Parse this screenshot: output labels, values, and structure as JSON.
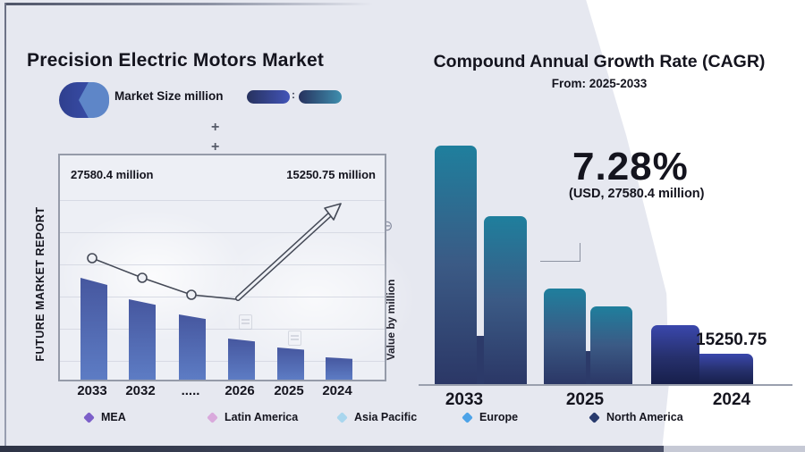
{
  "colors": {
    "background": "#e6e8f0",
    "panel": "#edeff5",
    "left_bar_top": "#46579f",
    "left_bar_bottom": "#5d7cc4",
    "teal": "#1f7f9d",
    "navy": "#2b3766",
    "indigo": "#3a47ac",
    "indigo_dark": "#171f4b",
    "trend_line": "#454a57"
  },
  "header": {
    "left_title": "Precision Electric Motors  Market",
    "size_label": "Market Size million",
    "ratio_separator": ":"
  },
  "icons": {
    "plus_top": "+",
    "plus_bottom": "+",
    "minus_circle": "⊖"
  },
  "watermarks": {
    "left_vertical": "FUTURE MARKET REPORT",
    "right_vertical": "Value by million"
  },
  "legend": {
    "items": [
      {
        "label": "MEA",
        "color": "#7c5fc9"
      },
      {
        "label": "Latin America",
        "color": "#d9a9dc"
      },
      {
        "label": "Asia Pacific",
        "color": "#a9d6ee"
      },
      {
        "label": "Europe",
        "color": "#4da3e8"
      },
      {
        "label": "North America",
        "color": "#283a6d"
      }
    ]
  },
  "chart_data": [
    {
      "id": "market-size-by-year",
      "type": "bar",
      "title": "Precision Electric Motors  Market",
      "ylabel": "Value by million",
      "categories": [
        "2033",
        "2032",
        ".....",
        "2026",
        "2025",
        "2024"
      ],
      "visual_heights_pct": [
        100,
        79,
        64,
        40,
        32,
        22
      ],
      "annotations": {
        "top_left": "27580.4 million",
        "top_right": "15250.75 million"
      },
      "known_values": {
        "2033": 27580.4,
        "2024": 15250.75
      },
      "unit": "USD million",
      "trend": "marker line descending left-to-right with outlined arrow rising to top-right",
      "grid": true,
      "legend_position": "bottom"
    },
    {
      "id": "cagr-growth",
      "type": "bar",
      "title": "Compound Annual Growth Rate (CAGR)",
      "subtitle": "From: 2025-2033",
      "cagr_label": "7.28%",
      "cagr_note": "(USD, 27580.4 million)",
      "categories": [
        "2033",
        "2025",
        "2024"
      ],
      "series": [
        {
          "name": "primary",
          "visual_heights_pct": [
            100,
            40,
            24.7
          ]
        },
        {
          "name": "secondary",
          "visual_heights_pct": [
            70.4,
            32.6,
            12.7
          ]
        }
      ],
      "value_label": "15250.75",
      "known_values": {
        "2033": 27580.4,
        "2024": 15250.75
      },
      "unit": "USD million",
      "grid": false
    }
  ]
}
